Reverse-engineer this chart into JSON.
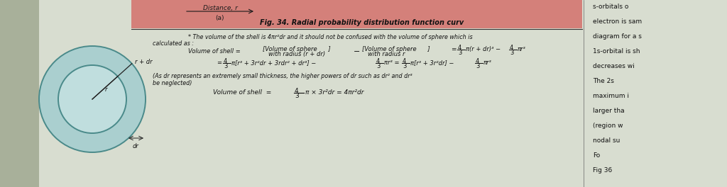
{
  "header_color": "#d4807a",
  "header_text": "Distance, r",
  "header_sub": "(a)",
  "fig_caption": "Fig. 34. Radial probability distribution function curv",
  "body_bg": "#d8ddd0",
  "page_bg": "#b8bca8",
  "left_bg": "#a8b09a",
  "circle_edge": "#4a8a8a",
  "circle_outer_fill": "#aacfcf",
  "circle_inner_fill": "#c0dede",
  "label_r": "r",
  "label_rdr": "r + dr",
  "label_dr": "dr",
  "right_lines": [
    "s-orbitals o",
    "electron is sam",
    "diagram for a s",
    "1s-orbital is sh",
    "decreases wi",
    "The 2s",
    "maximum i",
    "larger tha",
    "(region w",
    "nodal su",
    "Fo",
    "Fig 36"
  ]
}
